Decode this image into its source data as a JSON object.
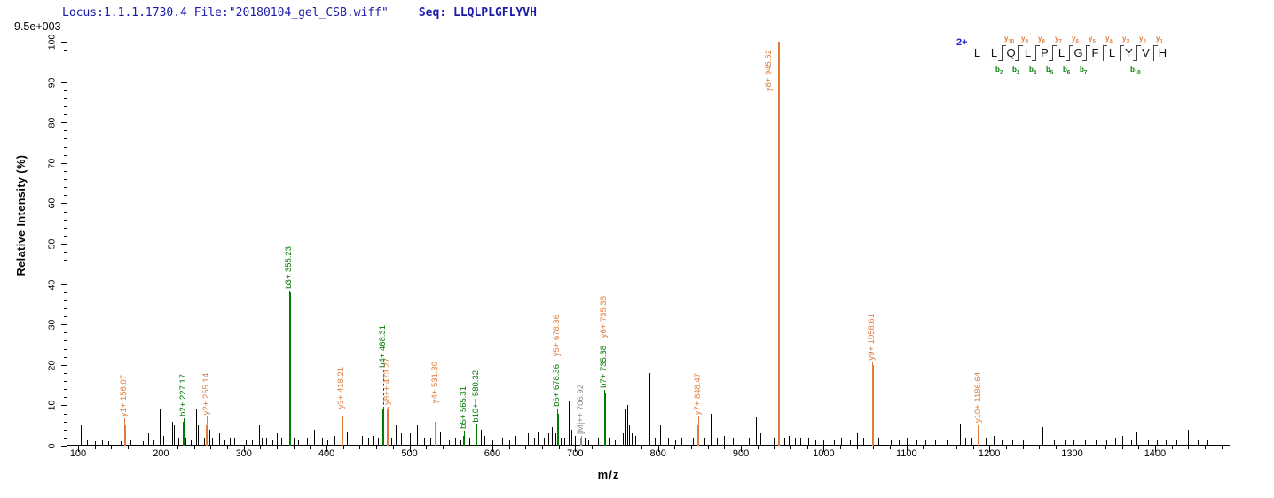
{
  "header": {
    "locus_file": "Locus:1.1.1.1730.4 File:\"20180104_gel_CSB.wiff\"",
    "seq": "Seq: LLQLPLGFLYVH"
  },
  "axes": {
    "max_intensity": "9.5e+003",
    "y_title": "Relative  Intensity (%)",
    "x_title": "m/z",
    "y_tick_labels": [
      0,
      10,
      20,
      30,
      40,
      50,
      60,
      70,
      80,
      90,
      100
    ],
    "x_tick_labels": [
      100,
      200,
      300,
      400,
      500,
      600,
      700,
      800,
      900,
      1000,
      1100,
      1200,
      1300,
      1400
    ],
    "x_minor_step": 20,
    "y_minor_step": 2,
    "x_range": [
      86,
      1488
    ],
    "y_range": [
      0,
      100
    ]
  },
  "colors": {
    "header_text": "#1b1ba8",
    "y_ion": "#e07b3c",
    "b_ion": "#007a00",
    "precursor": "#8c8c8c",
    "noise": "#000000",
    "charge": "#2222cc",
    "axis": "#000000"
  },
  "peptide_diagram": {
    "charge": "2+",
    "residues": [
      "L",
      "L",
      "Q",
      "L",
      "P",
      "L",
      "G",
      "F",
      "L",
      "Y",
      "V",
      "H"
    ],
    "y_ions": [
      {
        "label": "y10",
        "gap": 2
      },
      {
        "label": "y9",
        "gap": 3
      },
      {
        "label": "y8",
        "gap": 4
      },
      {
        "label": "y7",
        "gap": 5
      },
      {
        "label": "y6",
        "gap": 6
      },
      {
        "label": "y5",
        "gap": 7
      },
      {
        "label": "y4",
        "gap": 8
      },
      {
        "label": "y3",
        "gap": 9
      },
      {
        "label": "y2",
        "gap": 10
      },
      {
        "label": "y1",
        "gap": 11
      }
    ],
    "b_ions": [
      {
        "label": "b2",
        "gap": 2
      },
      {
        "label": "b3",
        "gap": 3
      },
      {
        "label": "b4",
        "gap": 4
      },
      {
        "label": "b5",
        "gap": 5
      },
      {
        "label": "b6",
        "gap": 6
      },
      {
        "label": "b7",
        "gap": 7
      },
      {
        "label": "b10",
        "gap": 10
      }
    ]
  },
  "chart_data": {
    "type": "bar",
    "title": "",
    "xlabel": "m/z",
    "ylabel": "Relative  Intensity (%)",
    "xlim": [
      86,
      1488
    ],
    "ylim": [
      0,
      100
    ],
    "base_peak_absolute_intensity": "9.5e+003",
    "annotated_peaks": [
      {
        "mz": 156.07,
        "intensity": 5,
        "dy": 10,
        "labels": [
          {
            "text": "y1+ 156.07",
            "series": "y"
          }
        ]
      },
      {
        "mz": 227.17,
        "intensity": 6,
        "dy": 6,
        "labels": [
          {
            "text": "b2+ 227.17",
            "series": "b"
          }
        ]
      },
      {
        "mz": 255.14,
        "intensity": 5,
        "dy": 12,
        "labels": [
          {
            "text": "y2+ 255.14",
            "series": "y"
          }
        ]
      },
      {
        "mz": 355.23,
        "intensity": 38,
        "dy": 4,
        "labels": [
          {
            "text": "b3+ 355.23",
            "series": "b"
          }
        ]
      },
      {
        "mz": 418.21,
        "intensity": 7.5,
        "dy": 8,
        "labels": [
          {
            "text": "y3+ 418.21",
            "series": "y"
          }
        ]
      },
      {
        "mz": 468.31,
        "intensity": 9,
        "dy": 47,
        "dashed": true,
        "labels": [
          {
            "text": "b4+ 468.31",
            "series": "b"
          }
        ]
      },
      {
        "mz": 473.27,
        "intensity": 9,
        "dy": 5,
        "dashed": true,
        "labels": [
          {
            "text": "y8++ 473.27",
            "series": "y"
          }
        ]
      },
      {
        "mz": 531.3,
        "intensity": 6,
        "dy": 20,
        "labels": [
          {
            "text": "y4+ 531.30",
            "series": "y"
          }
        ]
      },
      {
        "mz": 565.31,
        "intensity": 2.5,
        "dy": 8,
        "labels": [
          {
            "text": "b5+ 565.31",
            "series": "b"
          }
        ]
      },
      {
        "mz": 580.32,
        "intensity": 4.5,
        "dy": 6,
        "labels": [
          {
            "text": "b10++ 580.32",
            "series": "b"
          }
        ]
      },
      {
        "mz": 678.36,
        "intensity": 8,
        "dy": 8,
        "labels": [
          {
            "text": "b6+ 678.36",
            "series": "b"
          },
          {
            "text": "y5+ 678.36",
            "series": "y"
          }
        ]
      },
      {
        "mz": 706.92,
        "intensity": 2,
        "dy": 4,
        "labels": [
          {
            "text": "[M]++ 706.92",
            "series": "M"
          }
        ]
      },
      {
        "mz": 735.38,
        "intensity": 13,
        "dy": 6,
        "labels": [
          {
            "text": "b7+ 735.38",
            "series": "b"
          },
          {
            "text": "y6+ 735.38",
            "series": "y"
          }
        ]
      },
      {
        "mz": 848.47,
        "intensity": 5,
        "dy": 12,
        "labels": [
          {
            "text": "y7+ 848.47",
            "series": "y"
          }
        ]
      },
      {
        "mz": 945.52,
        "intensity": 100,
        "dy": -56,
        "dx": -17,
        "labels": [
          {
            "text": "y8+ 945.52",
            "series": "y"
          }
        ]
      },
      {
        "mz": 1058.61,
        "intensity": 20,
        "dy": 5,
        "labels": [
          {
            "text": "y9+ 1058.61",
            "series": "y"
          }
        ]
      },
      {
        "mz": 1186.64,
        "intensity": 5,
        "dy": 3,
        "labels": [
          {
            "text": "y10+ 1186.64",
            "series": "y"
          }
        ]
      }
    ],
    "noise_peaks": [
      [
        103,
        5
      ],
      [
        111,
        1.5
      ],
      [
        120,
        1.2
      ],
      [
        129,
        1.5
      ],
      [
        136,
        1.2
      ],
      [
        143,
        1.5
      ],
      [
        151,
        1.2
      ],
      [
        163,
        1.5
      ],
      [
        172,
        1.5
      ],
      [
        178,
        1.2
      ],
      [
        185,
        3
      ],
      [
        191,
        1.5
      ],
      [
        199,
        9
      ],
      [
        203,
        2.5
      ],
      [
        209,
        1.5
      ],
      [
        213,
        6
      ],
      [
        216,
        5
      ],
      [
        221,
        2
      ],
      [
        230,
        2
      ],
      [
        236,
        1.5
      ],
      [
        242,
        9
      ],
      [
        245,
        5
      ],
      [
        252,
        2
      ],
      [
        258,
        4
      ],
      [
        262,
        2
      ],
      [
        266,
        4
      ],
      [
        270,
        3
      ],
      [
        277,
        1.5
      ],
      [
        283,
        2
      ],
      [
        288,
        2
      ],
      [
        295,
        1.5
      ],
      [
        302,
        1.5
      ],
      [
        310,
        1.5
      ],
      [
        318,
        5
      ],
      [
        322,
        2
      ],
      [
        327,
        2
      ],
      [
        334,
        1.5
      ],
      [
        340,
        3
      ],
      [
        345,
        2
      ],
      [
        352,
        2
      ],
      [
        360,
        2
      ],
      [
        366,
        1.5
      ],
      [
        371,
        2.5
      ],
      [
        376,
        2
      ],
      [
        381,
        3
      ],
      [
        385,
        4
      ],
      [
        389,
        6
      ],
      [
        395,
        2
      ],
      [
        401,
        1.5
      ],
      [
        410,
        2.5
      ],
      [
        424,
        3.5
      ],
      [
        428,
        2
      ],
      [
        437,
        3
      ],
      [
        443,
        2.5
      ],
      [
        450,
        2
      ],
      [
        456,
        2.5
      ],
      [
        462,
        2
      ],
      [
        478,
        2
      ],
      [
        483,
        5
      ],
      [
        490,
        3
      ],
      [
        500,
        3
      ],
      [
        509,
        5
      ],
      [
        518,
        2
      ],
      [
        525,
        2
      ],
      [
        537,
        3.5
      ],
      [
        541,
        2
      ],
      [
        548,
        1.5
      ],
      [
        555,
        2
      ],
      [
        562,
        1.5
      ],
      [
        572,
        2
      ],
      [
        586,
        4
      ],
      [
        591,
        2.5
      ],
      [
        600,
        1.5
      ],
      [
        612,
        2
      ],
      [
        620,
        1.5
      ],
      [
        628,
        2.5
      ],
      [
        636,
        1.5
      ],
      [
        643,
        3
      ],
      [
        650,
        2
      ],
      [
        655,
        3.5
      ],
      [
        662,
        2
      ],
      [
        668,
        3
      ],
      [
        672,
        4.5
      ],
      [
        676,
        3
      ],
      [
        683,
        2
      ],
      [
        687,
        2
      ],
      [
        692,
        11
      ],
      [
        695,
        4
      ],
      [
        700,
        2.5
      ],
      [
        711,
        2
      ],
      [
        716,
        1.5
      ],
      [
        722,
        3
      ],
      [
        728,
        2
      ],
      [
        741,
        2
      ],
      [
        748,
        1.5
      ],
      [
        758,
        3
      ],
      [
        761,
        9
      ],
      [
        763,
        10
      ],
      [
        765,
        5
      ],
      [
        768,
        3
      ],
      [
        772,
        2.5
      ],
      [
        779,
        1.5
      ],
      [
        790,
        18
      ],
      [
        796,
        2
      ],
      [
        802,
        5
      ],
      [
        812,
        2
      ],
      [
        821,
        1.5
      ],
      [
        828,
        2
      ],
      [
        836,
        2
      ],
      [
        842,
        2
      ],
      [
        856,
        2
      ],
      [
        864,
        8
      ],
      [
        871,
        2
      ],
      [
        880,
        2.5
      ],
      [
        890,
        2
      ],
      [
        902,
        5
      ],
      [
        910,
        2
      ],
      [
        918,
        7
      ],
      [
        924,
        3
      ],
      [
        931,
        2
      ],
      [
        940,
        2
      ],
      [
        952,
        2
      ],
      [
        958,
        2.5
      ],
      [
        965,
        2
      ],
      [
        972,
        2
      ],
      [
        981,
        2
      ],
      [
        990,
        1.5
      ],
      [
        1000,
        1.5
      ],
      [
        1012,
        1.5
      ],
      [
        1021,
        2
      ],
      [
        1032,
        1.5
      ],
      [
        1040,
        3
      ],
      [
        1048,
        2
      ],
      [
        1066,
        2
      ],
      [
        1073,
        2
      ],
      [
        1081,
        1.5
      ],
      [
        1091,
        1.5
      ],
      [
        1100,
        2
      ],
      [
        1112,
        1.5
      ],
      [
        1123,
        1.5
      ],
      [
        1135,
        1.5
      ],
      [
        1148,
        1.5
      ],
      [
        1158,
        2
      ],
      [
        1165,
        5.5
      ],
      [
        1171,
        2
      ],
      [
        1178,
        2
      ],
      [
        1196,
        2
      ],
      [
        1205,
        2.5
      ],
      [
        1215,
        1.5
      ],
      [
        1228,
        1.5
      ],
      [
        1241,
        1.5
      ],
      [
        1253,
        2.5
      ],
      [
        1264,
        4.5
      ],
      [
        1278,
        1.5
      ],
      [
        1291,
        1.5
      ],
      [
        1302,
        1.5
      ],
      [
        1315,
        1.5
      ],
      [
        1328,
        1.5
      ],
      [
        1341,
        1.5
      ],
      [
        1352,
        2
      ],
      [
        1360,
        2.5
      ],
      [
        1371,
        1.5
      ],
      [
        1378,
        3.5
      ],
      [
        1391,
        1.5
      ],
      [
        1402,
        1.5
      ],
      [
        1413,
        1.5
      ],
      [
        1426,
        1.5
      ],
      [
        1440,
        4
      ],
      [
        1452,
        1.5
      ],
      [
        1463,
        1.5
      ]
    ]
  }
}
